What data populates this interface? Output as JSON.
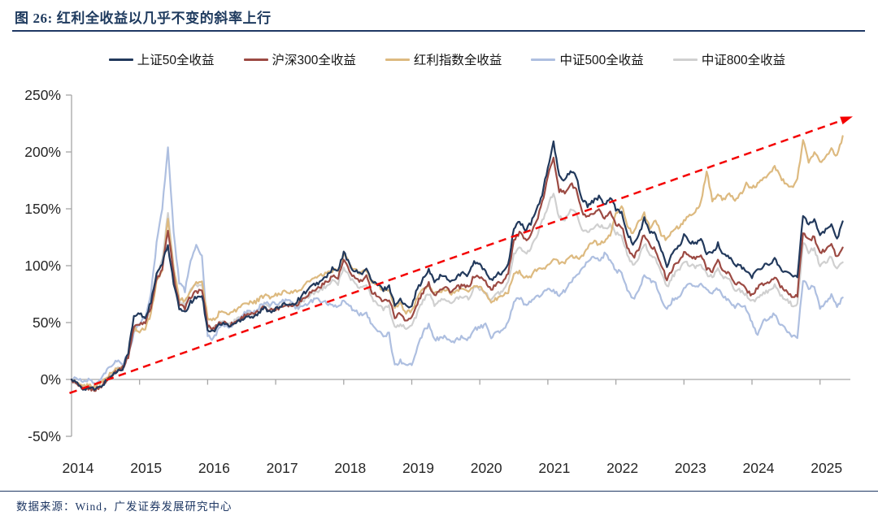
{
  "figure": {
    "title": "图 26: 红利全收益以几乎不变的斜率上行"
  },
  "footer": {
    "source": "数据来源：Wind，广发证券发展研究中心"
  },
  "chart_data": {
    "type": "line",
    "title": "红利全收益以几乎不变的斜率上行",
    "xlabel": "",
    "ylabel": "",
    "ylim": [
      -50,
      250
    ],
    "y_ticks": [
      250,
      200,
      150,
      100,
      50,
      0,
      -50
    ],
    "y_tick_suffix": "%",
    "x_ticks": [
      2014,
      2015,
      2016,
      2017,
      2018,
      2019,
      2020,
      2021,
      2022,
      2023,
      2024,
      2025
    ],
    "x_start": 2014.0,
    "frequency": "monthly",
    "grid": false,
    "legend_position": "top",
    "axis_color": "#a6a6a6",
    "tick_label_color": "#262626",
    "draw_order": [
      4,
      3,
      2,
      1,
      0
    ],
    "render": {
      "jitter_pct": 1.8,
      "subdivisions": 4
    },
    "trendline": {
      "style": "dashed-arrow",
      "color": "#f40000",
      "x0": 2013.97,
      "v0": -12,
      "x1": 2025.38,
      "v1": 229
    },
    "series": [
      {
        "id": "sse50-tr",
        "name": "上证50全收益",
        "color": "#22395c",
        "values": [
          0,
          -4,
          -8,
          -7,
          -9,
          -7,
          -2,
          3,
          7,
          10,
          24,
          55,
          58,
          54,
          68,
          92,
          102,
          118,
          85,
          62,
          58,
          68,
          72,
          74,
          44,
          42,
          48,
          49,
          47,
          50,
          53,
          56,
          55,
          58,
          63,
          60,
          62,
          64,
          67,
          66,
          70,
          76,
          80,
          84,
          86,
          91,
          97,
          95,
          112,
          101,
          95,
          93,
          97,
          86,
          83,
          79,
          82,
          66,
          70,
          64,
          66,
          80,
          88,
          96,
          86,
          91,
          90,
          86,
          91,
          93,
          92,
          103,
          101,
          94,
          88,
          92,
          94,
          100,
          133,
          139,
          131,
          137,
          149,
          163,
          186,
          208,
          178,
          176,
          184,
          179,
          158,
          153,
          157,
          160,
          154,
          159,
          150,
          147,
          129,
          119,
          126,
          141,
          130,
          127,
          114,
          99,
          111,
          116,
          126,
          121,
          120,
          123,
          111,
          110,
          119,
          110,
          108,
          100,
          100,
          95,
          90,
          97,
          100,
          101,
          106,
          98,
          94,
          91,
          90,
          145,
          137,
          141,
          127,
          131,
          136,
          124,
          139
        ]
      },
      {
        "id": "csi300-tr",
        "name": "沪深300全收益",
        "color": "#9c4a43",
        "values": [
          0,
          -5,
          -9,
          -8,
          -9,
          -7,
          -2,
          4,
          8,
          10,
          20,
          46,
          49,
          51,
          64,
          88,
          96,
          132,
          92,
          66,
          62,
          73,
          77,
          79,
          47,
          44,
          50,
          50,
          48,
          51,
          54,
          58,
          57,
          59,
          64,
          61,
          62,
          64,
          66,
          65,
          67,
          72,
          76,
          79,
          82,
          86,
          91,
          89,
          105,
          95,
          89,
          86,
          90,
          77,
          74,
          68,
          71,
          55,
          58,
          52,
          54,
          67,
          77,
          84,
          74,
          80,
          81,
          77,
          81,
          82,
          81,
          91,
          90,
          86,
          79,
          84,
          86,
          94,
          122,
          129,
          122,
          128,
          139,
          155,
          178,
          196,
          166,
          164,
          172,
          167,
          147,
          142,
          145,
          148,
          142,
          147,
          137,
          135,
          117,
          107,
          114,
          128,
          117,
          114,
          101,
          87,
          98,
          103,
          112,
          108,
          106,
          109,
          98,
          96,
          104,
          95,
          93,
          85,
          84,
          79,
          74,
          81,
          84,
          85,
          90,
          82,
          78,
          74,
          73,
          130,
          122,
          125,
          111,
          114,
          119,
          107,
          116
        ]
      },
      {
        "id": "dividend-index-tr",
        "name": "红利指数全收益",
        "color": "#ddba80",
        "values": [
          0,
          -4,
          -6,
          -5,
          -6,
          -4,
          1,
          6,
          9,
          11,
          23,
          44,
          43,
          45,
          58,
          86,
          96,
          142,
          98,
          72,
          68,
          79,
          84,
          87,
          55,
          52,
          58,
          60,
          58,
          61,
          65,
          68,
          67,
          70,
          74,
          72,
          74,
          76,
          78,
          76,
          78,
          82,
          87,
          89,
          91,
          93,
          96,
          95,
          111,
          101,
          96,
          93,
          96,
          86,
          84,
          78,
          80,
          63,
          66,
          59,
          61,
          71,
          79,
          83,
          75,
          78,
          79,
          75,
          79,
          79,
          77,
          83,
          81,
          77,
          67,
          71,
          73,
          77,
          93,
          95,
          89,
          91,
          97,
          96,
          101,
          107,
          102,
          103,
          108,
          107,
          108,
          115,
          122,
          119,
          122,
          127,
          145,
          154,
          136,
          128,
          138,
          146,
          133,
          139,
          128,
          123,
          131,
          134,
          139,
          144,
          148,
          155,
          183,
          158,
          162,
          158,
          164,
          158,
          163,
          172,
          168,
          172,
          178,
          180,
          188,
          178,
          172,
          168,
          175,
          212,
          192,
          200,
          190,
          196,
          203,
          196,
          214
        ]
      },
      {
        "id": "csi500-tr",
        "name": "中证500全收益",
        "color": "#aebfe0",
        "values": [
          0,
          2,
          -2,
          -1,
          -4,
          -2,
          6,
          12,
          16,
          14,
          22,
          40,
          50,
          54,
          75,
          120,
          150,
          205,
          130,
          85,
          78,
          105,
          118,
          108,
          38,
          35,
          45,
          48,
          46,
          50,
          56,
          60,
          59,
          63,
          68,
          66,
          67,
          68,
          70,
          66,
          62,
          65,
          68,
          70,
          69,
          68,
          64,
          63,
          71,
          64,
          60,
          57,
          59,
          48,
          44,
          38,
          40,
          12,
          16,
          12,
          14,
          28,
          42,
          48,
          34,
          37,
          38,
          32,
          36,
          37,
          36,
          44,
          46,
          48,
          35,
          42,
          42,
          50,
          68,
          72,
          66,
          68,
          72,
          76,
          80,
          78,
          74,
          78,
          86,
          92,
          96,
          104,
          108,
          104,
          110,
          106,
          96,
          94,
          80,
          70,
          78,
          92,
          88,
          84,
          70,
          62,
          70,
          72,
          80,
          84,
          82,
          84,
          78,
          76,
          80,
          72,
          70,
          64,
          66,
          62,
          50,
          38,
          52,
          54,
          58,
          48,
          44,
          38,
          36,
          88,
          80,
          82,
          62,
          68,
          74,
          64,
          72
        ]
      },
      {
        "id": "csi800-tr",
        "name": "中证800全收益",
        "color": "#d0d0d0",
        "values": [
          0,
          -4,
          -8,
          -7,
          -8,
          -6,
          -1,
          5,
          9,
          11,
          20,
          44,
          48,
          50,
          64,
          92,
          104,
          148,
          98,
          70,
          65,
          78,
          83,
          84,
          48,
          44,
          50,
          51,
          49,
          52,
          55,
          59,
          58,
          61,
          66,
          62,
          63,
          65,
          67,
          65,
          66,
          70,
          74,
          77,
          79,
          82,
          86,
          84,
          99,
          90,
          84,
          81,
          84,
          71,
          67,
          61,
          64,
          46,
          49,
          44,
          46,
          59,
          70,
          76,
          65,
          70,
          71,
          67,
          71,
          72,
          71,
          81,
          80,
          77,
          70,
          75,
          77,
          85,
          111,
          117,
          110,
          115,
          125,
          139,
          152,
          165,
          142,
          141,
          149,
          146,
          132,
          130,
          134,
          136,
          132,
          136,
          129,
          127,
          110,
          100,
          107,
          120,
          110,
          107,
          94,
          81,
          91,
          96,
          104,
          101,
          99,
          102,
          92,
          90,
          97,
          89,
          87,
          79,
          78,
          74,
          68,
          72,
          76,
          77,
          82,
          74,
          70,
          66,
          65,
          120,
          112,
          115,
          100,
          103,
          108,
          96,
          103
        ]
      }
    ]
  }
}
